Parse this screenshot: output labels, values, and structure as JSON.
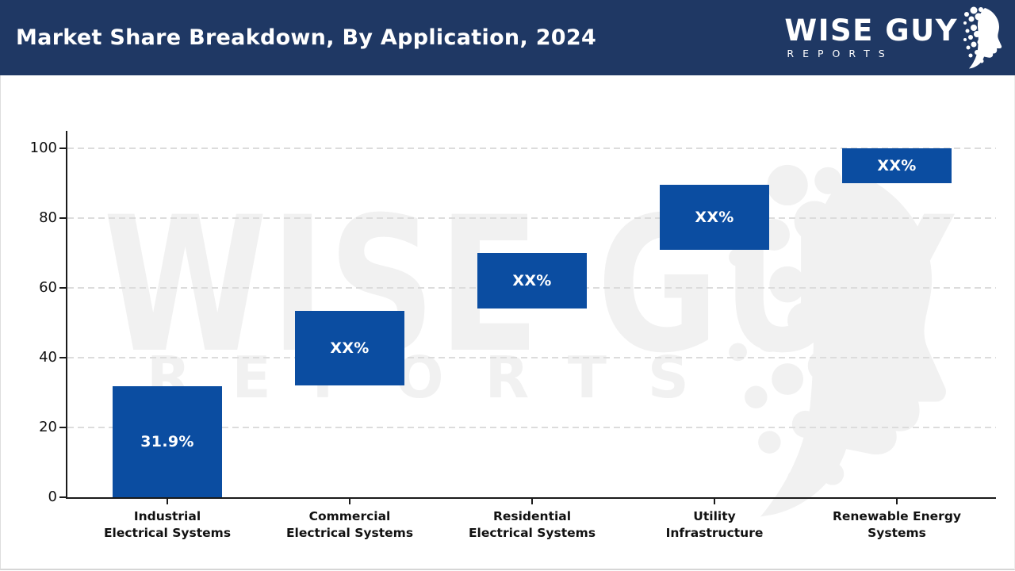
{
  "header": {
    "title": "Market Share Breakdown, By Application, 2024",
    "bg_color": "#1f3864",
    "logo": {
      "line1": "WISE GUY",
      "line2": "REPORTS"
    }
  },
  "watermark": {
    "line1": "WISE GUY",
    "line2": "REPORTS"
  },
  "chart_data": {
    "type": "bar",
    "variant": "waterfall",
    "title": "Market Share Breakdown, By Application, 2024",
    "xlabel": "",
    "ylabel": "",
    "ylim": [
      0,
      100
    ],
    "yticks": [
      0,
      20,
      40,
      60,
      80,
      100
    ],
    "ytick_labels": [
      "0",
      "20",
      "40",
      "60",
      "80",
      "100"
    ],
    "grid": "horizontal-dashed",
    "legend": false,
    "bar_color": "#0b4da1",
    "categories": [
      "Industrial Electrical Systems",
      "Commercial Electrical Systems",
      "Residential Electrical Systems",
      "Utility Infrastructure",
      "Renewable Energy Systems"
    ],
    "category_lines": [
      [
        "Industrial",
        "Electrical Systems"
      ],
      [
        "Commercial",
        "Electrical Systems"
      ],
      [
        "Residential",
        "Electrical Systems"
      ],
      [
        "Utility",
        "Infrastructure"
      ],
      [
        "Renewable Energy",
        "Systems"
      ]
    ],
    "bar_starts": [
      0,
      32,
      54,
      71,
      90
    ],
    "bar_ends": [
      31.9,
      53.5,
      70,
      89.5,
      100
    ],
    "bar_labels": [
      "31.9%",
      "XX%",
      "XX%",
      "XX%",
      "XX%"
    ]
  }
}
